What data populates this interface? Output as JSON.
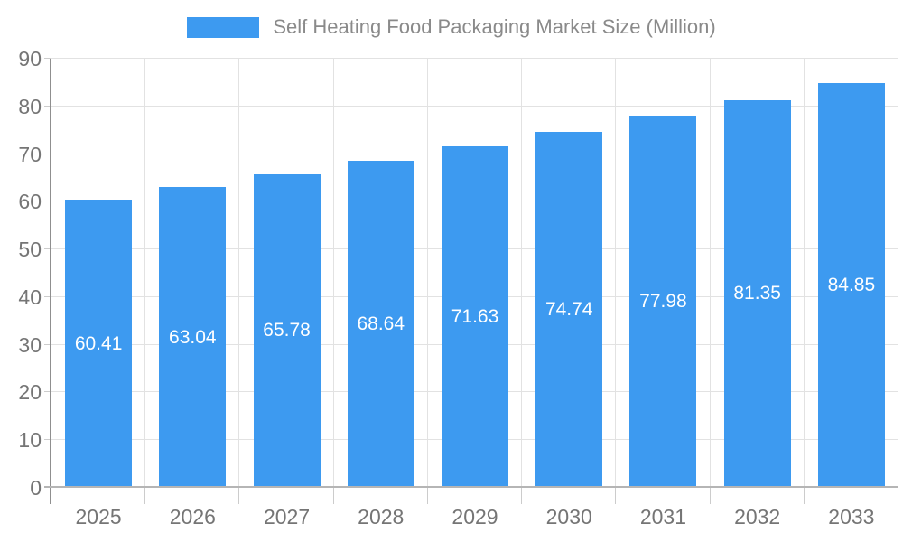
{
  "chart_data": {
    "type": "bar",
    "title": "Self Heating Food Packaging Market Size (Million)",
    "categories": [
      "2025",
      "2026",
      "2027",
      "2028",
      "2029",
      "2030",
      "2031",
      "2032",
      "2033"
    ],
    "values": [
      60.41,
      63.04,
      65.78,
      68.64,
      71.63,
      74.74,
      77.98,
      81.35,
      84.85
    ],
    "value_labels": [
      "60.41",
      "63.04",
      "65.78",
      "68.64",
      "71.63",
      "74.74",
      "77.98",
      "81.35",
      "84.85"
    ],
    "xlabel": "",
    "ylabel": "",
    "ylim": [
      0,
      90
    ],
    "yticks": [
      0,
      10,
      20,
      30,
      40,
      50,
      60,
      70,
      80,
      90
    ],
    "ytick_labels": [
      "0",
      "10",
      "20",
      "30",
      "40",
      "50",
      "60",
      "70",
      "80",
      "90"
    ],
    "grid": true,
    "legend_position": "top",
    "value_labels_inside_bars": true,
    "colors": {
      "bar": "#3d9af0",
      "grid": "#e2e2e2",
      "y_axis": "#8f8f8f",
      "x_axis": "#b5b5b5",
      "tick": "#cccccc",
      "axis_label": "#757575",
      "legend_text": "#8a8a8a",
      "value_label": "#ffffff",
      "background": "#ffffff"
    }
  }
}
